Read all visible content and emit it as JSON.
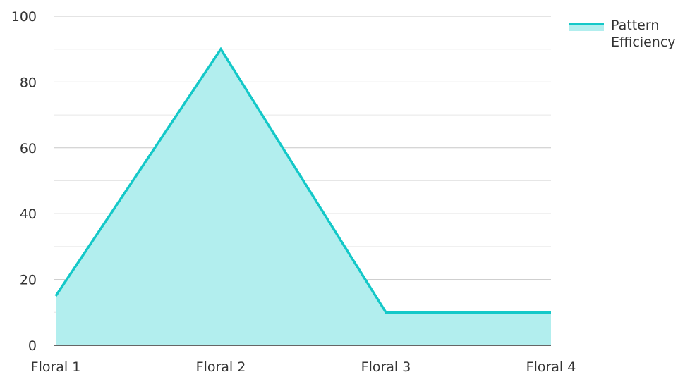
{
  "chart_data": {
    "type": "area",
    "title": "",
    "xlabel": "",
    "ylabel": "",
    "categories": [
      "Floral 1",
      "Floral 2",
      "Floral 3",
      "Floral 4"
    ],
    "series": [
      {
        "name": "Pattern Efficiency",
        "values": [
          15,
          90,
          10,
          10
        ]
      }
    ],
    "ylim": [
      0,
      100
    ],
    "yticks": [
      0,
      20,
      40,
      60,
      80,
      100
    ],
    "grid": true,
    "legend_position": "top-right",
    "colors": {
      "line": "#14c8c8",
      "fill": "#b2eeee",
      "grid": "#d9d9d9",
      "axis": "#333333"
    }
  }
}
